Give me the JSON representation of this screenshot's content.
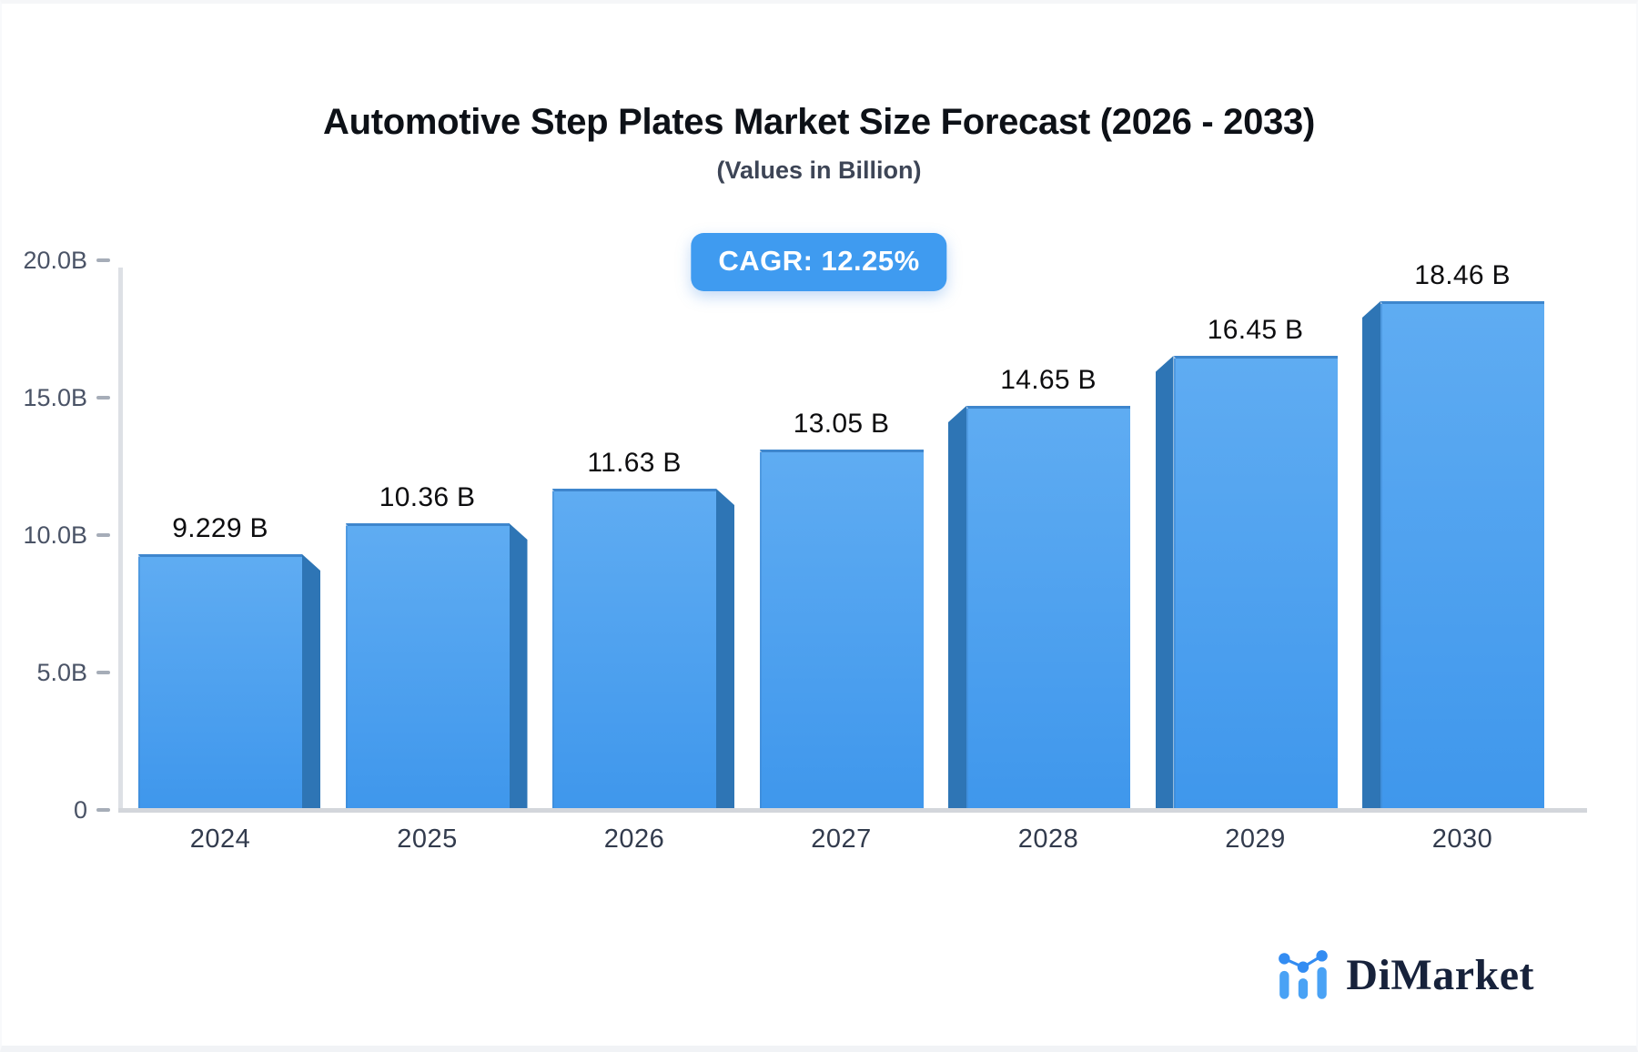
{
  "header": {
    "title": "Automotive Step Plates Market Size Forecast (2026 - 2033)",
    "subtitle": "(Values in Billion)"
  },
  "badge": {
    "label": "CAGR: 12.25%"
  },
  "chart_data": {
    "type": "bar",
    "title": "Automotive Step Plates Market Size Forecast (2026 - 2033)",
    "subtitle": "(Values in Billion)",
    "cagr_label": "CAGR: 12.25%",
    "categories": [
      "2024",
      "2025",
      "2026",
      "2027",
      "2028",
      "2029",
      "2030"
    ],
    "values": [
      9.229,
      10.36,
      11.63,
      13.05,
      14.65,
      16.45,
      18.46
    ],
    "value_labels": [
      "9.229 B",
      "10.36 B",
      "11.63 B",
      "13.05 B",
      "14.65 B",
      "16.45 B",
      "18.46 B"
    ],
    "y_ticks": [
      {
        "label": "0",
        "value": 0
      },
      {
        "label": "5.0B",
        "value": 5
      },
      {
        "label": "10.0B",
        "value": 10
      },
      {
        "label": "15.0B",
        "value": 15
      },
      {
        "label": "20.0B",
        "value": 20
      }
    ],
    "ylim": [
      0,
      20
    ],
    "grid": false,
    "legend": false,
    "bar_style": "3d-center-perspective"
  },
  "logo": {
    "text": "DiMarket",
    "icon": "bar-chart-logo-icon"
  },
  "colors": {
    "bar_face_top": "#5FACF2",
    "bar_face_bottom": "#3F97EC",
    "bar_face_edge": "#3E86CD",
    "bar_side": "#2E75B5",
    "badge_bg": "#3F9BF0",
    "badge_text": "#FFFFFF",
    "axis_line": "#D8DBE0",
    "tick_text": "#4A5366",
    "title_text": "#0D1117",
    "logo_text": "#17223B",
    "logo_blue": "#49A2F5",
    "logo_dot_blue": "#338CF2"
  }
}
